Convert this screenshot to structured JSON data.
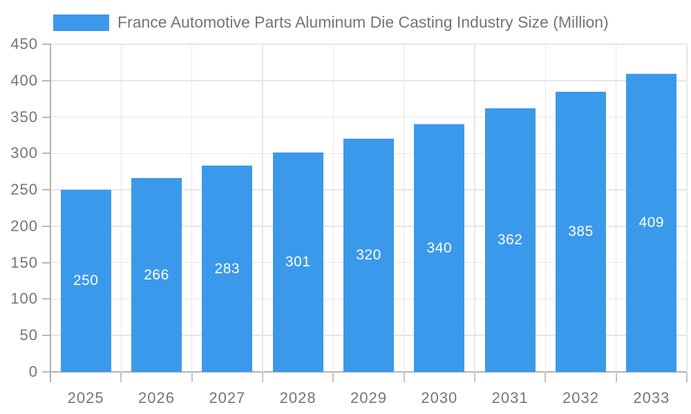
{
  "chart_data": {
    "type": "bar",
    "title": "France Automotive Parts Aluminum Die Casting Industry Size (Million)",
    "categories": [
      "2025",
      "2026",
      "2027",
      "2028",
      "2029",
      "2030",
      "2031",
      "2032",
      "2033"
    ],
    "values": [
      250,
      266,
      283,
      301,
      320,
      340,
      362,
      385,
      409
    ],
    "series": [
      {
        "name": "France Automotive Parts Aluminum Die Casting Industry Size (Million)",
        "values": [
          250,
          266,
          283,
          301,
          320,
          340,
          362,
          385,
          409
        ]
      }
    ],
    "xlabel": "",
    "ylabel": "",
    "ylim": [
      0,
      450
    ],
    "ytick_step": 50,
    "yticks": [
      0,
      50,
      100,
      150,
      200,
      250,
      300,
      350,
      400,
      450
    ],
    "grid": true,
    "legend_position": "top-left",
    "value_labels": "centered-inside-bars",
    "colors": {
      "bar": "#3b99ec",
      "value_label": "#ffffff",
      "axis_text": "#757575",
      "gridline": "#e6e6e6",
      "axis_line": "#b0b0b0",
      "background": "#ffffff"
    }
  }
}
